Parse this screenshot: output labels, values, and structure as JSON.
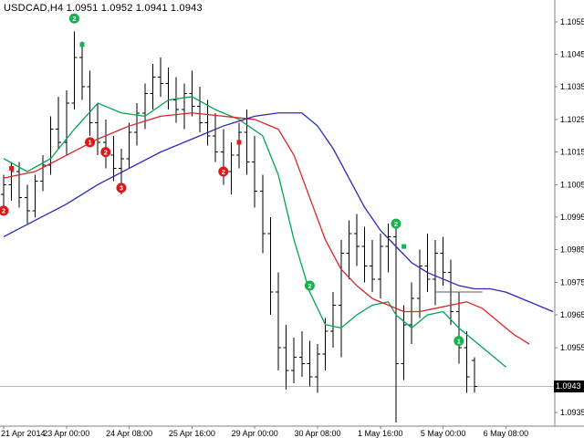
{
  "window": {
    "title_text": "USDCAD,H4 1.0951 1.0952 1.0941 1.0943"
  },
  "price_badge": {
    "value": "1.0943"
  },
  "colors": {
    "background": "#ffffff",
    "bar": "#000000",
    "ma_fast_green": "#00a651",
    "ma_mid_red": "#d92525",
    "ma_slow_blue": "#2a2ab8",
    "marker_green": "#14b24c",
    "marker_red": "#e01717",
    "marker_label": "#ffffff",
    "axis_line": "#808080",
    "axis_text": "#000000",
    "current_price_line": "#b8b8b8",
    "level_line": "#555555",
    "badge_bg": "#000000",
    "badge_fg": "#ffffff"
  },
  "chart_data": {
    "type": "ohlc-bar",
    "title": "USDCAD,H4",
    "symbol": "USDCAD",
    "timeframe": "H4",
    "ohlc_current": {
      "open": "1.0951",
      "high": "1.0952",
      "low": "1.0941",
      "close": "1.0943"
    },
    "current_price": 1.0943,
    "y_axis": {
      "min": 1.093,
      "max": 1.106,
      "tick_labels": [
        "1.1055",
        "1.1045",
        "1.1035",
        "1.1025",
        "1.1015",
        "1.1005",
        "1.0995",
        "1.0985",
        "1.0975",
        "1.0965",
        "1.0955",
        "1.0935"
      ]
    },
    "x_axis": {
      "labels": [
        {
          "text": "21 Apr 2014",
          "index": 0
        },
        {
          "text": "23 Apr 00:00",
          "index": 8
        },
        {
          "text": "24 Apr 08:00",
          "index": 16
        },
        {
          "text": "25 Apr 16:00",
          "index": 24
        },
        {
          "text": "29 Apr 00:00",
          "index": 32
        },
        {
          "text": "30 Apr 08:00",
          "index": 40
        },
        {
          "text": "1 May 16:00",
          "index": 48
        },
        {
          "text": "5 May 00:00",
          "index": 56
        },
        {
          "text": "6 May 08:00",
          "index": 64
        }
      ]
    },
    "bars": [
      [
        1.1002,
        1.1008,
        1.0996,
        1.1005
      ],
      [
        1.1005,
        1.1012,
        1.1,
        1.1009
      ],
      [
        1.1009,
        1.1012,
        1.0998,
        1.1001
      ],
      [
        1.1001,
        1.1005,
        1.0993,
        1.0997
      ],
      [
        1.0997,
        1.1008,
        1.0995,
        1.1006
      ],
      [
        1.1006,
        1.1014,
        1.1003,
        1.1011
      ],
      [
        1.1011,
        1.1026,
        1.1008,
        1.1022
      ],
      [
        1.1022,
        1.1032,
        1.1016,
        1.1018
      ],
      [
        1.1018,
        1.1034,
        1.1014,
        1.103
      ],
      [
        1.103,
        1.1052,
        1.1028,
        1.1044
      ],
      [
        1.1044,
        1.1049,
        1.1031,
        1.1035
      ],
      [
        1.1035,
        1.104,
        1.102,
        1.1024
      ],
      [
        1.1024,
        1.103,
        1.1014,
        1.1018
      ],
      [
        1.1018,
        1.1025,
        1.101,
        1.1014
      ],
      [
        1.1014,
        1.102,
        1.1006,
        1.101
      ],
      [
        1.101,
        1.1016,
        1.1002,
        1.1013
      ],
      [
        1.1013,
        1.1024,
        1.101,
        1.1021
      ],
      [
        1.1021,
        1.103,
        1.1017,
        1.1027
      ],
      [
        1.1027,
        1.1036,
        1.1022,
        1.1033
      ],
      [
        1.1033,
        1.1042,
        1.1028,
        1.1038
      ],
      [
        1.1038,
        1.1044,
        1.1032,
        1.1036
      ],
      [
        1.1036,
        1.1041,
        1.1028,
        1.1031
      ],
      [
        1.1031,
        1.1038,
        1.1024,
        1.1028
      ],
      [
        1.1028,
        1.1036,
        1.1022,
        1.1033
      ],
      [
        1.1033,
        1.104,
        1.1026,
        1.1029
      ],
      [
        1.1029,
        1.1035,
        1.1021,
        1.1024
      ],
      [
        1.1024,
        1.1031,
        1.1017,
        1.102
      ],
      [
        1.102,
        1.1027,
        1.1012,
        1.1015
      ],
      [
        1.1015,
        1.1022,
        1.1005,
        1.1009
      ],
      [
        1.1009,
        1.1018,
        1.1002,
        1.1014
      ],
      [
        1.1014,
        1.1024,
        1.101,
        1.1021
      ],
      [
        1.1021,
        1.1028,
        1.1008,
        1.1012
      ],
      [
        1.1012,
        1.102,
        1.0998,
        1.1003
      ],
      [
        1.1003,
        1.1008,
        1.0984,
        1.099
      ],
      [
        1.099,
        1.0995,
        1.0965,
        1.0972
      ],
      [
        1.0972,
        1.0978,
        1.0948,
        1.0955
      ],
      [
        1.0955,
        1.0962,
        1.0942,
        1.0948
      ],
      [
        1.0948,
        1.0958,
        1.0944,
        1.0952
      ],
      [
        1.0952,
        1.096,
        1.0946,
        1.095
      ],
      [
        1.095,
        1.0957,
        1.0943,
        1.0946
      ],
      [
        1.0946,
        1.0956,
        1.0941,
        1.0953
      ],
      [
        1.0953,
        1.0964,
        1.0948,
        1.096
      ],
      [
        1.096,
        1.0972,
        1.0955,
        1.0968
      ],
      [
        1.0968,
        1.0988,
        1.0952,
        1.0984
      ],
      [
        1.0984,
        1.0994,
        1.0976,
        1.099
      ],
      [
        1.099,
        1.0996,
        1.098,
        1.0986
      ],
      [
        1.0986,
        1.0992,
        1.0975,
        1.098
      ],
      [
        1.098,
        1.0988,
        1.0972,
        1.0976
      ],
      [
        1.0976,
        1.099,
        1.097,
        1.0986
      ],
      [
        1.0986,
        1.0993,
        1.0978,
        1.0989
      ],
      [
        1.0989,
        1.0992,
        1.0932,
        1.095
      ],
      [
        1.095,
        1.0968,
        1.0945,
        1.0962
      ],
      [
        1.0962,
        1.0975,
        1.0956,
        1.097
      ],
      [
        1.097,
        1.0985,
        1.0964,
        1.098
      ],
      [
        1.098,
        1.099,
        1.0972,
        1.0976
      ],
      [
        1.0976,
        1.0988,
        1.0968,
        1.0984
      ],
      [
        1.0984,
        1.0989,
        1.0974,
        1.0978
      ],
      [
        1.0978,
        1.0982,
        1.0962,
        1.0966
      ],
      [
        1.0966,
        1.0972,
        1.095,
        1.0955
      ],
      [
        1.0955,
        1.096,
        1.0941,
        1.0946
      ],
      [
        1.0951,
        1.0952,
        1.0941,
        1.0943
      ]
    ],
    "series": [
      {
        "name": "ma-fast",
        "color_key": "ma_fast_green",
        "points": [
          [
            0,
            1.1013
          ],
          [
            3,
            1.1009
          ],
          [
            6,
            1.1013
          ],
          [
            9,
            1.1022
          ],
          [
            12,
            1.103
          ],
          [
            15,
            1.1027
          ],
          [
            18,
            1.1026
          ],
          [
            21,
            1.1031
          ],
          [
            24,
            1.1032
          ],
          [
            27,
            1.1028
          ],
          [
            30,
            1.1025
          ],
          [
            33,
            1.102
          ],
          [
            35,
            1.1008
          ],
          [
            37,
            1.0988
          ],
          [
            39,
            1.0972
          ],
          [
            41,
            1.0962
          ],
          [
            43,
            1.0961
          ],
          [
            45,
            1.0965
          ],
          [
            47,
            1.0968
          ],
          [
            49,
            1.0969
          ],
          [
            50,
            1.0965
          ],
          [
            52,
            1.0961
          ],
          [
            54,
            1.0965
          ],
          [
            56,
            1.0966
          ],
          [
            58,
            1.0961
          ],
          [
            60,
            1.0957
          ],
          [
            62,
            1.0953
          ],
          [
            64,
            1.0949
          ]
        ]
      },
      {
        "name": "ma-mid",
        "color_key": "ma_mid_red",
        "points": [
          [
            0,
            1.1007
          ],
          [
            4,
            1.1009
          ],
          [
            8,
            1.1014
          ],
          [
            12,
            1.1019
          ],
          [
            16,
            1.1023
          ],
          [
            20,
            1.1026
          ],
          [
            24,
            1.1027
          ],
          [
            28,
            1.1026
          ],
          [
            32,
            1.1025
          ],
          [
            35,
            1.1022
          ],
          [
            37,
            1.1014
          ],
          [
            39,
            1.1001
          ],
          [
            41,
            1.0988
          ],
          [
            43,
            1.0979
          ],
          [
            45,
            1.0974
          ],
          [
            47,
            1.097
          ],
          [
            49,
            1.0968
          ],
          [
            51,
            1.0966
          ],
          [
            53,
            1.0966
          ],
          [
            55,
            1.0967
          ],
          [
            57,
            1.0968
          ],
          [
            59,
            1.0969
          ],
          [
            61,
            1.0967
          ],
          [
            63,
            1.0963
          ],
          [
            65,
            1.0959
          ],
          [
            67,
            1.0956
          ]
        ]
      },
      {
        "name": "ma-slow",
        "color_key": "ma_slow_blue",
        "points": [
          [
            0,
            1.0989
          ],
          [
            4,
            1.0994
          ],
          [
            8,
            1.0999
          ],
          [
            12,
            1.1005
          ],
          [
            16,
            1.101
          ],
          [
            20,
            1.1015
          ],
          [
            24,
            1.1019
          ],
          [
            28,
            1.1023
          ],
          [
            32,
            1.1026
          ],
          [
            35,
            1.1027
          ],
          [
            38,
            1.1027
          ],
          [
            40,
            1.1023
          ],
          [
            42,
            1.1016
          ],
          [
            44,
            1.1007
          ],
          [
            46,
            1.0998
          ],
          [
            48,
            1.0991
          ],
          [
            50,
            1.0986
          ],
          [
            52,
            1.0981
          ],
          [
            54,
            1.0978
          ],
          [
            56,
            1.0976
          ],
          [
            58,
            1.0974
          ],
          [
            60,
            1.0973
          ],
          [
            62,
            1.0973
          ],
          [
            64,
            1.0972
          ],
          [
            66,
            1.097
          ],
          [
            68,
            1.0968
          ],
          [
            70,
            1.0966
          ]
        ]
      }
    ],
    "markers": [
      {
        "type": "circle",
        "color": "red",
        "label": "2",
        "index": 0,
        "price": 1.0997
      },
      {
        "type": "square",
        "color": "red",
        "label": "",
        "index": 1,
        "price": 1.101
      },
      {
        "type": "circle",
        "color": "green",
        "label": "2",
        "index": 9,
        "price": 1.1056
      },
      {
        "type": "square",
        "color": "green",
        "label": "",
        "index": 10,
        "price": 1.1048
      },
      {
        "type": "circle",
        "color": "red",
        "label": "1",
        "index": 11,
        "price": 1.1018
      },
      {
        "type": "circle",
        "color": "red",
        "label": "2",
        "index": 13,
        "price": 1.1015
      },
      {
        "type": "circle",
        "color": "red",
        "label": "3",
        "index": 15,
        "price": 1.1004
      },
      {
        "type": "circle",
        "color": "red",
        "label": "2",
        "index": 28,
        "price": 1.1009
      },
      {
        "type": "square",
        "color": "red",
        "label": "",
        "index": 30,
        "price": 1.1018
      },
      {
        "type": "circle",
        "color": "green",
        "label": "2",
        "index": 39,
        "price": 1.0974
      },
      {
        "type": "circle",
        "color": "green",
        "label": "2",
        "index": 50,
        "price": 1.0993
      },
      {
        "type": "square",
        "color": "green",
        "label": "",
        "index": 51,
        "price": 1.0986
      },
      {
        "type": "circle",
        "color": "green",
        "label": "1",
        "index": 58,
        "price": 1.0957
      }
    ],
    "level_segment": {
      "price": 1.0972,
      "from_index": 55,
      "to_index": 61
    }
  }
}
